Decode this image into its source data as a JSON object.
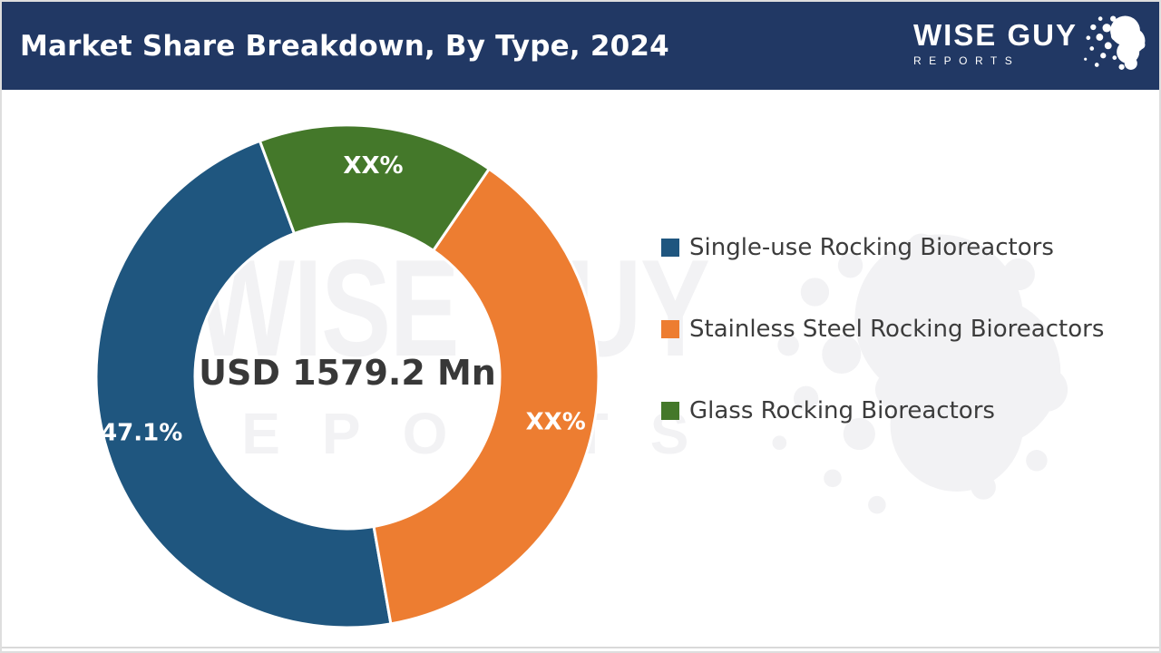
{
  "header": {
    "title": "Market Share Breakdown, By Type, 2024",
    "logo": {
      "line1": "WISE GUY",
      "line2": "REPORTS"
    }
  },
  "watermark": {
    "line1": "WISE GUY",
    "line2": "REPORTS"
  },
  "chart_data": {
    "type": "pie",
    "subtype": "donut",
    "title": "Market Share Breakdown, By Type, 2024",
    "center_label": "USD 1579.2 Mn",
    "start_angle_deg": 110.4,
    "direction": "ccw",
    "legend_position": "right",
    "segments": [
      {
        "name": "Single-use Rocking Bioreactors",
        "value_pct": 47.1,
        "label": "47.1%",
        "color": "#1F567F"
      },
      {
        "name": "Stainless Steel Rocking Bioreactors",
        "value_pct": 37.7,
        "label": "XX%",
        "color": "#ED7D31"
      },
      {
        "name": "Glass Rocking Bioreactors",
        "value_pct": 15.2,
        "label": "XX%",
        "color": "#44782A"
      }
    ]
  },
  "colors": {
    "header_bg": "#213864",
    "page_border": "#DEDEDE",
    "center_label_text": "#383838",
    "legend_text": "#3C3C3C",
    "watermark": "#F2F2F4",
    "slice_label_text": "#FFFFFF"
  }
}
